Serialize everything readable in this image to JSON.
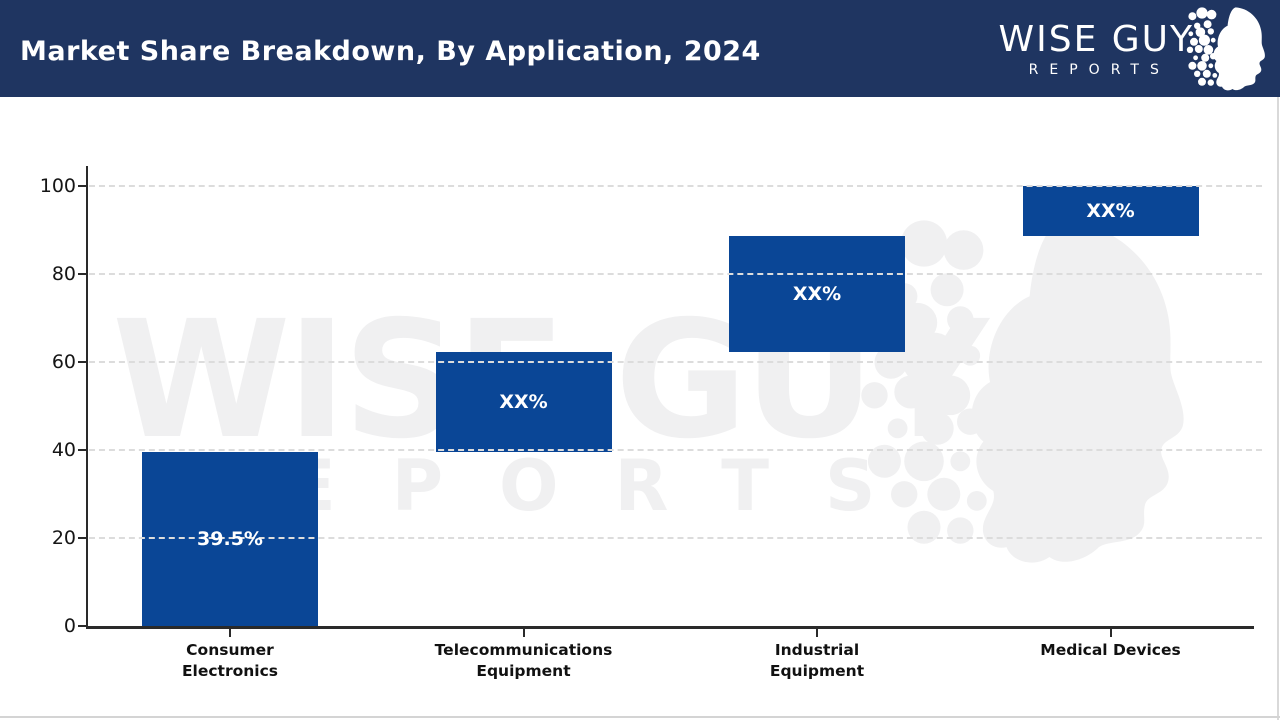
{
  "header": {
    "title": "Market Share Breakdown, By Application, 2024",
    "logo": {
      "line1": "WISE GUY",
      "line2": "REPORTS"
    }
  },
  "watermark": {
    "line1": "WISE GUY",
    "line2": "REPORTS"
  },
  "colors": {
    "header_bg": "#1f3561",
    "bar": "#0a4696",
    "bar_label": "#ffffff",
    "gridline": "#dcdcdc",
    "axis": "#2a2a2a",
    "watermark": "#f0f0f1",
    "title_text": "#ffffff"
  },
  "chart_data": {
    "type": "bar",
    "subtype": "floating-waterfall",
    "title": "Market Share Breakdown, By Application, 2024",
    "categories": [
      "Consumer\nElectronics",
      "Telecommunications\nEquipment",
      "Industrial\nEquipment",
      "Medical Devices"
    ],
    "segments": [
      {
        "category": "Consumer Electronics",
        "start": 0,
        "end": 39.5,
        "label": "39.5%"
      },
      {
        "category": "Telecommunications Equipment",
        "start": 39.5,
        "end": 62.3,
        "label": "XX%"
      },
      {
        "category": "Industrial Equipment",
        "start": 62.3,
        "end": 88.7,
        "label": "XX%"
      },
      {
        "category": "Medical Devices",
        "start": 88.7,
        "end": 100,
        "label": "XX%"
      }
    ],
    "yticks": [
      0,
      20,
      40,
      60,
      80,
      100
    ],
    "ylim": [
      0,
      104
    ],
    "xlabel": "",
    "ylabel": "",
    "grid": "horizontal-dashed",
    "legend": "none"
  }
}
